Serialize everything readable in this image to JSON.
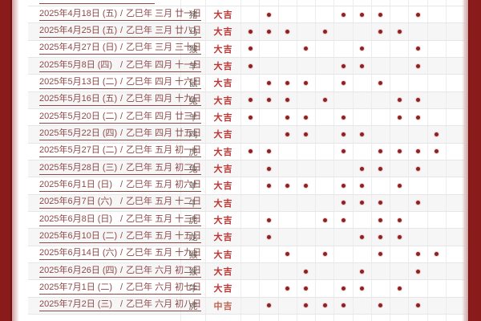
{
  "page": {
    "description": "Chinese almanac auspicious-dates table",
    "separator": "/"
  },
  "colors": {
    "accent_bar": "#8a1b1b",
    "link": "#8c4948",
    "rating_da": "#bd3430",
    "rating_zhong": "#c2604f",
    "animal_text": "#6a5c54",
    "dot": "#8e2020",
    "alt_row_bg": "#f7f6f6",
    "grid_line": "#ececec"
  },
  "table": {
    "dot_columns": 12,
    "rows": [
      {
        "solar": "2025年4月18日 (五)",
        "lunar": "乙巳年 三月 廿一日",
        "animal": "猪",
        "rating": "大吉",
        "rating_type": "da",
        "dots": [
          2,
          6,
          7,
          8,
          10
        ]
      },
      {
        "solar": "2025年4月25日 (五)",
        "lunar": "乙巳年 三月 廿八日",
        "animal": "马",
        "rating": "大吉",
        "rating_type": "da",
        "dots": [
          1,
          2,
          3,
          5,
          8,
          9
        ]
      },
      {
        "solar": "2025年4月27日 (日)",
        "lunar": "乙巳年 三月 三十日",
        "animal": "猴",
        "rating": "大吉",
        "rating_type": "da",
        "dots": [
          1,
          4,
          7,
          10
        ]
      },
      {
        "solar": "2025年5月8日 (四)",
        "lunar": "乙巳年 四月 十一日",
        "animal": "羊",
        "rating": "大吉",
        "rating_type": "da",
        "dots": [
          1,
          6,
          7,
          10
        ]
      },
      {
        "solar": "2025年5月13日 (二)",
        "lunar": "乙巳年 四月 十六日",
        "animal": "鼠",
        "rating": "大吉",
        "rating_type": "da",
        "dots": [
          2,
          3,
          4,
          6,
          8
        ]
      },
      {
        "solar": "2025年5月16日 (五)",
        "lunar": "乙巳年 四月 十九日",
        "animal": "兔",
        "rating": "大吉",
        "rating_type": "da",
        "dots": [
          1,
          2,
          3,
          5,
          9,
          10
        ]
      },
      {
        "solar": "2025年5月20日 (二)",
        "lunar": "乙巳年 四月 廿三日",
        "animal": "羊",
        "rating": "大吉",
        "rating_type": "da",
        "dots": [
          1,
          3,
          4,
          6,
          9,
          10
        ]
      },
      {
        "solar": "2025年5月22日 (四)",
        "lunar": "乙巳年 四月 廿五日",
        "animal": "鸡",
        "rating": "大吉",
        "rating_type": "da",
        "dots": [
          3,
          4,
          6,
          7,
          11
        ]
      },
      {
        "solar": "2025年5月27日 (二)",
        "lunar": "乙巳年 五月 初一日",
        "animal": "虎",
        "rating": "大吉",
        "rating_type": "da",
        "dots": [
          1,
          2,
          6,
          8,
          9,
          10,
          11
        ]
      },
      {
        "solar": "2025年5月28日 (三)",
        "lunar": "乙巳年 五月 初二日",
        "animal": "兔",
        "rating": "大吉",
        "rating_type": "da",
        "dots": [
          2,
          7,
          8,
          10
        ]
      },
      {
        "solar": "2025年6月1日 (日)",
        "lunar": "乙巳年 五月 初六日",
        "animal": "羊",
        "rating": "大吉",
        "rating_type": "da",
        "dots": [
          2,
          3,
          4,
          6,
          7,
          9
        ]
      },
      {
        "solar": "2025年6月7日 (六)",
        "lunar": "乙巳年 五月 十二日",
        "animal": "牛",
        "rating": "大吉",
        "rating_type": "da",
        "dots": [
          6,
          7,
          8,
          10
        ]
      },
      {
        "solar": "2025年6月8日 (日)",
        "lunar": "乙巳年 五月 十三日",
        "animal": "虎",
        "rating": "大吉",
        "rating_type": "da",
        "dots": [
          2,
          5,
          6,
          8,
          9
        ]
      },
      {
        "solar": "2025年6月10日 (二)",
        "lunar": "乙巳年 五月 十五日",
        "animal": "龙",
        "rating": "大吉",
        "rating_type": "da",
        "dots": [
          2,
          7,
          8,
          9
        ]
      },
      {
        "solar": "2025年6月14日 (六)",
        "lunar": "乙巳年 五月 十九日",
        "animal": "猴",
        "rating": "大吉",
        "rating_type": "da",
        "dots": [
          3,
          5,
          8,
          10,
          11
        ]
      },
      {
        "solar": "2025年6月26日 (四)",
        "lunar": "乙巳年 六月 初二日",
        "animal": "猴",
        "rating": "大吉",
        "rating_type": "da",
        "dots": [
          4,
          7,
          10
        ]
      },
      {
        "solar": "2025年7月1日 (二)",
        "lunar": "乙巳年 六月 初七日",
        "animal": "牛",
        "rating": "大吉",
        "rating_type": "da",
        "dots": [
          3,
          4,
          6,
          7,
          9
        ]
      },
      {
        "solar": "2025年7月2日 (三)",
        "lunar": "乙巳年 六月 初八日",
        "animal": "虎",
        "rating": "中吉",
        "rating_type": "zhong",
        "dots": [
          2,
          4,
          5,
          6,
          8,
          10
        ]
      }
    ]
  }
}
